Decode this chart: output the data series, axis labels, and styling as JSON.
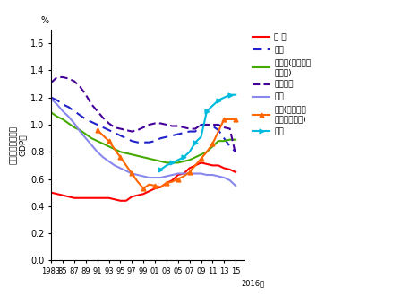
{
  "xlim": [
    1983,
    2016.5
  ],
  "ylim": [
    0.0,
    1.7
  ],
  "yticks": [
    0.0,
    0.2,
    0.4,
    0.6,
    0.8,
    1.0,
    1.2,
    1.4,
    1.6
  ],
  "xtick_pos": [
    1983,
    1985,
    1987,
    1989,
    1991,
    1993,
    1995,
    1997,
    1999,
    2001,
    2003,
    2005,
    2007,
    2009,
    2011,
    2013,
    2015
  ],
  "xtick_labels": [
    "1983",
    "85",
    "87",
    "89",
    "91",
    "93",
    "95",
    "97",
    "99",
    "01",
    "03",
    "05",
    "07",
    "09",
    "11",
    "13",
    "15"
  ],
  "japan_years": [
    1983,
    1984,
    1985,
    1986,
    1987,
    1988,
    1989,
    1990,
    1991,
    1992,
    1993,
    1994,
    1995,
    1996,
    1997,
    1998,
    1999,
    2000,
    2001,
    2002,
    2003,
    2004,
    2005,
    2006,
    2007,
    2008,
    2009,
    2010,
    2011,
    2012,
    2013,
    2014,
    2015
  ],
  "japan_values": [
    0.5,
    0.49,
    0.48,
    0.47,
    0.46,
    0.46,
    0.46,
    0.46,
    0.46,
    0.46,
    0.46,
    0.45,
    0.44,
    0.44,
    0.47,
    0.48,
    0.49,
    0.51,
    0.53,
    0.54,
    0.57,
    0.59,
    0.63,
    0.64,
    0.68,
    0.7,
    0.72,
    0.71,
    0.7,
    0.7,
    0.68,
    0.67,
    0.65
  ],
  "usa_years": [
    1983,
    1984,
    1985,
    1986,
    1987,
    1988,
    1989,
    1990,
    1991,
    1992,
    1993,
    1994,
    1995,
    1996,
    1997,
    1998,
    1999,
    2000,
    2001,
    2002,
    2003,
    2004,
    2005,
    2006,
    2007,
    2008,
    2009,
    2010,
    2011,
    2012,
    2013,
    2014,
    2015
  ],
  "usa_values": [
    1.2,
    1.18,
    1.15,
    1.13,
    1.1,
    1.07,
    1.04,
    1.02,
    1.0,
    0.98,
    0.96,
    0.94,
    0.92,
    0.9,
    0.88,
    0.87,
    0.87,
    0.87,
    0.88,
    0.9,
    0.91,
    0.92,
    0.93,
    0.94,
    0.95,
    0.95,
    1.0,
    1.0,
    0.99,
    0.96,
    0.9,
    0.84,
    0.8
  ],
  "germany_years": [
    1983,
    1984,
    1985,
    1986,
    1987,
    1988,
    1989,
    1990,
    1991,
    1992,
    1993,
    1994,
    1995,
    1996,
    1997,
    1998,
    1999,
    2000,
    2001,
    2002,
    2003,
    2004,
    2005,
    2006,
    2007,
    2008,
    2009,
    2010,
    2011,
    2012,
    2013,
    2014,
    2015
  ],
  "germany_values": [
    1.09,
    1.06,
    1.04,
    1.01,
    0.98,
    0.96,
    0.93,
    0.9,
    0.88,
    0.86,
    0.84,
    0.82,
    0.8,
    0.79,
    0.78,
    0.77,
    0.76,
    0.75,
    0.74,
    0.73,
    0.72,
    0.72,
    0.72,
    0.73,
    0.74,
    0.76,
    0.78,
    0.8,
    0.84,
    0.88,
    0.88,
    0.89,
    0.89
  ],
  "france_years": [
    1983,
    1984,
    1985,
    1986,
    1987,
    1988,
    1989,
    1990,
    1991,
    1992,
    1993,
    1994,
    1995,
    1996,
    1997,
    1998,
    1999,
    2000,
    2001,
    2002,
    2003,
    2004,
    2005,
    2006,
    2007,
    2008,
    2009,
    2010,
    2011,
    2012,
    2013,
    2014,
    2015
  ],
  "france_values": [
    1.31,
    1.35,
    1.35,
    1.34,
    1.32,
    1.28,
    1.22,
    1.15,
    1.1,
    1.05,
    1.01,
    0.98,
    0.97,
    0.96,
    0.95,
    0.96,
    0.98,
    1.0,
    1.01,
    1.01,
    1.0,
    0.99,
    0.99,
    0.98,
    0.97,
    0.97,
    1.0,
    1.0,
    1.0,
    1.0,
    0.98,
    0.97,
    0.78
  ],
  "uk_years": [
    1983,
    1984,
    1985,
    1986,
    1987,
    1988,
    1989,
    1990,
    1991,
    1992,
    1993,
    1994,
    1995,
    1996,
    1997,
    1998,
    1999,
    2000,
    2001,
    2002,
    2003,
    2004,
    2005,
    2006,
    2007,
    2008,
    2009,
    2010,
    2011,
    2012,
    2013,
    2014,
    2015
  ],
  "uk_values": [
    1.19,
    1.15,
    1.1,
    1.06,
    1.01,
    0.95,
    0.9,
    0.85,
    0.8,
    0.76,
    0.73,
    0.7,
    0.68,
    0.66,
    0.64,
    0.63,
    0.62,
    0.61,
    0.61,
    0.61,
    0.62,
    0.63,
    0.64,
    0.64,
    0.64,
    0.64,
    0.64,
    0.63,
    0.63,
    0.62,
    0.61,
    0.59,
    0.55
  ],
  "china_years": [
    1991,
    1992,
    1993,
    1994,
    1995,
    1996,
    1997,
    1998,
    1999,
    2000,
    2001,
    2002,
    2003,
    2004,
    2005,
    2006,
    2007,
    2008,
    2009,
    2010,
    2011,
    2012,
    2013,
    2014,
    2015
  ],
  "china_values": [
    0.96,
    0.92,
    0.88,
    0.82,
    0.76,
    0.7,
    0.64,
    0.58,
    0.53,
    0.56,
    0.55,
    0.54,
    0.57,
    0.58,
    0.6,
    0.62,
    0.65,
    0.7,
    0.75,
    0.8,
    0.86,
    0.95,
    1.04,
    1.04,
    1.04
  ],
  "korea_years": [
    2002,
    2003,
    2004,
    2005,
    2006,
    2007,
    2008,
    2009,
    2010,
    2011,
    2012,
    2013,
    2014,
    2015
  ],
  "korea_values": [
    0.67,
    0.7,
    0.72,
    0.74,
    0.76,
    0.8,
    0.87,
    0.91,
    1.1,
    1.14,
    1.18,
    1.2,
    1.22,
    1.22
  ],
  "japan_color": "#ff0000",
  "usa_color": "#2222cc",
  "germany_color": "#44aa00",
  "france_color": "#440099",
  "uk_color": "#8888ee",
  "china_color": "#ff6600",
  "korea_color": "#00bbdd"
}
